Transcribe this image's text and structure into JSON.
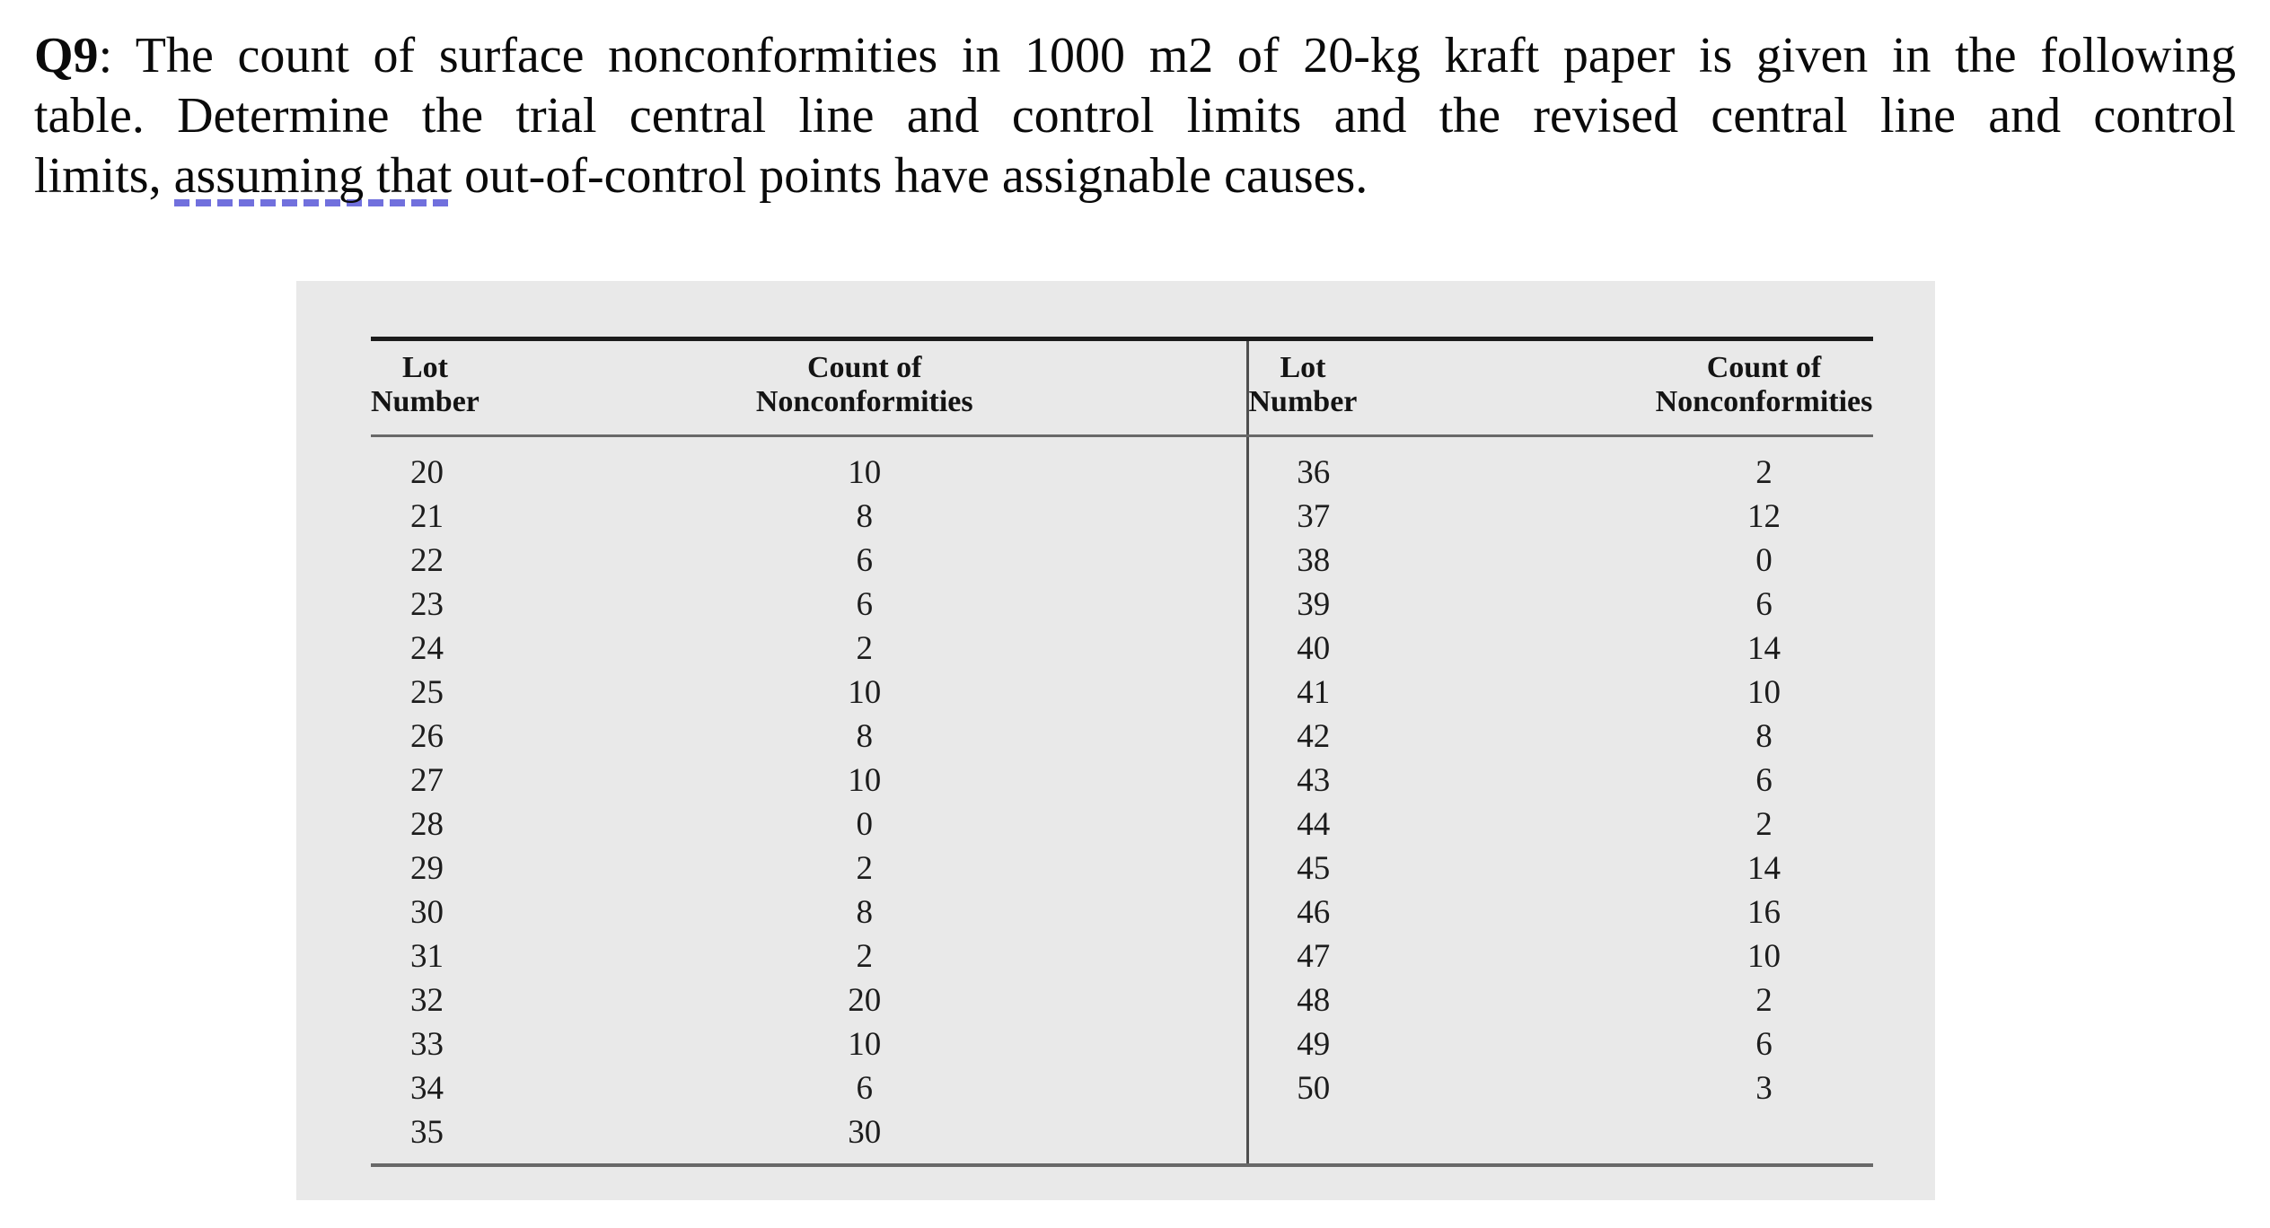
{
  "question": {
    "label": "Q9",
    "line1_rest": ": The count of surface nonconformities in 1000 m2 of 20-kg kraft paper is given in the following",
    "line2": "table. Determine the trial central line and control limits and the revised central line and control",
    "line3_before": "limits, ",
    "line3_underlined": "assuming that",
    "line3_after": " out-of-control points have assignable causes.",
    "underline_color": "#7170dd"
  },
  "table": {
    "panel_bg": "#e9e9e9",
    "header": {
      "lot_line1": "Lot",
      "lot_line2": "Number",
      "count_line1": "Count of",
      "count_line2": "Nonconformities"
    },
    "left_rows": [
      {
        "lot": "20",
        "count": "10"
      },
      {
        "lot": "21",
        "count": "8"
      },
      {
        "lot": "22",
        "count": "6"
      },
      {
        "lot": "23",
        "count": "6"
      },
      {
        "lot": "24",
        "count": "2"
      },
      {
        "lot": "25",
        "count": "10"
      },
      {
        "lot": "26",
        "count": "8"
      },
      {
        "lot": "27",
        "count": "10"
      },
      {
        "lot": "28",
        "count": "0"
      },
      {
        "lot": "29",
        "count": "2"
      },
      {
        "lot": "30",
        "count": "8"
      },
      {
        "lot": "31",
        "count": "2"
      },
      {
        "lot": "32",
        "count": "20"
      },
      {
        "lot": "33",
        "count": "10"
      },
      {
        "lot": "34",
        "count": "6"
      },
      {
        "lot": "35",
        "count": "30"
      }
    ],
    "right_rows": [
      {
        "lot": "36",
        "count": "2"
      },
      {
        "lot": "37",
        "count": "12"
      },
      {
        "lot": "38",
        "count": "0"
      },
      {
        "lot": "39",
        "count": "6"
      },
      {
        "lot": "40",
        "count": "14"
      },
      {
        "lot": "41",
        "count": "10"
      },
      {
        "lot": "42",
        "count": "8"
      },
      {
        "lot": "43",
        "count": "6"
      },
      {
        "lot": "44",
        "count": "2"
      },
      {
        "lot": "45",
        "count": "14"
      },
      {
        "lot": "46",
        "count": "16"
      },
      {
        "lot": "47",
        "count": "10"
      },
      {
        "lot": "48",
        "count": "2"
      },
      {
        "lot": "49",
        "count": "6"
      },
      {
        "lot": "50",
        "count": "3"
      }
    ]
  }
}
